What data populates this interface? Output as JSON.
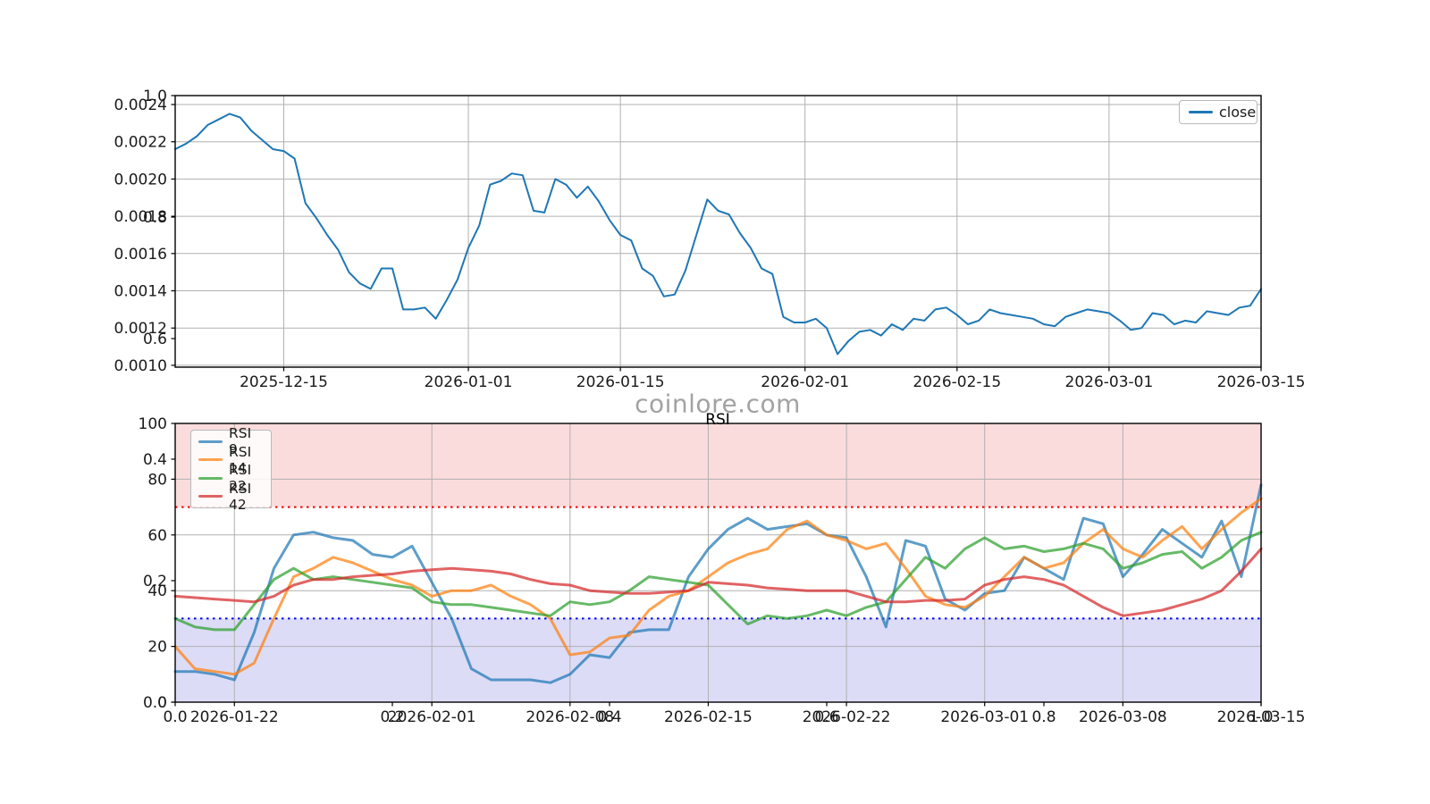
{
  "watermark": "coinlore.com",
  "colors": {
    "close_line": "#1f77b4",
    "rsi9": "#1f77b4",
    "rsi14": "#ff7f0e",
    "rsi22": "#2ca02c",
    "rsi42": "#d62728",
    "overbought_band": "#fbdcdd",
    "oversold_band": "#dcdcf7",
    "overbought_line": "#f50000",
    "oversold_line": "#0000f0",
    "grid": "#b0b0b0",
    "tick_text": "#1a1a1a"
  },
  "hidden_axis": {
    "x_labels": [
      "0.0",
      "0.2",
      "0.4",
      "0.6",
      "0.8",
      "1.0"
    ],
    "y_labels": [
      "1.0",
      "0.8",
      "0.6",
      "0.4",
      "0.2",
      "0.0"
    ]
  },
  "chart_data": [
    {
      "type": "line",
      "name": "price-panel",
      "title": "",
      "xlabel": "",
      "ylabel": "",
      "start_date": "2025-12-05",
      "frequency": "daily",
      "grid": true,
      "legend_position": "upper right",
      "ylim": [
        0.00099,
        0.002448
      ],
      "x_tick_labels": [
        "2025-12-15",
        "2026-01-01",
        "2026-01-15",
        "2026-02-01",
        "2026-02-15",
        "2026-03-01",
        "2026-03-15"
      ],
      "x_tick_indices": [
        10,
        27,
        41,
        58,
        72,
        86,
        100
      ],
      "y_tick_labels": [
        "0.0010",
        "0.0012",
        "0.0014",
        "0.0016",
        "0.0018",
        "0.0020",
        "0.0022",
        "0.0024"
      ],
      "y_tick_values": [
        0.001,
        0.0012,
        0.0014,
        0.0016,
        0.0018,
        0.002,
        0.0022,
        0.0024
      ],
      "series": [
        {
          "name": "close",
          "color": "#1f77b4",
          "values": [
            0.00216,
            0.00219,
            0.00223,
            0.00229,
            0.00232,
            0.00235,
            0.00233,
            0.00226,
            0.00221,
            0.00216,
            0.00215,
            0.00211,
            0.00187,
            0.00179,
            0.0017,
            0.00162,
            0.0015,
            0.00144,
            0.00141,
            0.00152,
            0.00152,
            0.0013,
            0.0013,
            0.00131,
            0.00125,
            0.00135,
            0.00146,
            0.00163,
            0.00175,
            0.00197,
            0.00199,
            0.00203,
            0.00202,
            0.00183,
            0.00182,
            0.002,
            0.00197,
            0.0019,
            0.00196,
            0.00188,
            0.00178,
            0.0017,
            0.00167,
            0.00152,
            0.00148,
            0.00137,
            0.00138,
            0.00151,
            0.0017,
            0.00189,
            0.00183,
            0.00181,
            0.00171,
            0.00163,
            0.00152,
            0.00149,
            0.00126,
            0.00123,
            0.00123,
            0.00125,
            0.0012,
            0.00106,
            0.00113,
            0.00118,
            0.00119,
            0.00116,
            0.00122,
            0.00119,
            0.00125,
            0.00124,
            0.0013,
            0.00131,
            0.00127,
            0.00122,
            0.00124,
            0.0013,
            0.00128,
            0.00127,
            0.00126,
            0.00125,
            0.00122,
            0.00121,
            0.00126,
            0.00128,
            0.0013,
            0.00129,
            0.00128,
            0.00124,
            0.00119,
            0.0012,
            0.00128,
            0.00127,
            0.00122,
            0.00124,
            0.00123,
            0.00129,
            0.00128,
            0.00127,
            0.00131,
            0.00132,
            0.00141
          ]
        }
      ]
    },
    {
      "type": "line",
      "name": "rsi-panel",
      "title": "RSI",
      "xlabel": "",
      "ylabel": "",
      "start_date": "2026-01-19",
      "frequency": "daily",
      "grid": true,
      "legend_position": "upper left",
      "ylim": [
        0,
        100
      ],
      "x_tick_labels": [
        "2026-01-22",
        "2026-02-01",
        "2026-02-08",
        "2026-02-15",
        "2026-02-22",
        "2026-03-01",
        "2026-03-08",
        "2026-03-15"
      ],
      "x_tick_indices": [
        3,
        13,
        20,
        27,
        34,
        41,
        48,
        55
      ],
      "y_tick_labels": [
        "0",
        "20",
        "40",
        "60",
        "80",
        "100"
      ],
      "y_tick_values": [
        0,
        20,
        40,
        60,
        80,
        100
      ],
      "bands": [
        {
          "name": "overbought",
          "from": 70,
          "to": 100,
          "color": "#fbdcdd"
        },
        {
          "name": "oversold",
          "from": 0,
          "to": 30,
          "color": "#dcdcf7"
        }
      ],
      "ref_lines": [
        {
          "name": "overbought-threshold",
          "value": 70,
          "color": "#f50000",
          "style": "dotted"
        },
        {
          "name": "oversold-threshold",
          "value": 30,
          "color": "#0000f0",
          "style": "dotted"
        }
      ],
      "series": [
        {
          "name": "RSI 9",
          "color": "#1f77b4",
          "values": [
            11,
            11,
            10,
            8,
            25,
            48,
            60,
            61,
            59,
            58,
            53,
            52,
            56,
            43,
            30,
            12,
            8,
            8,
            8,
            7,
            10,
            17,
            16,
            25,
            26,
            26,
            45,
            55,
            62,
            66,
            62,
            63,
            64,
            60,
            59,
            45,
            27,
            58,
            56,
            37,
            33,
            39,
            40,
            52,
            48,
            44,
            66,
            64,
            45,
            53,
            62,
            57,
            52,
            65,
            45,
            78
          ]
        },
        {
          "name": "RSI 14",
          "color": "#ff7f0e",
          "values": [
            20,
            12,
            11,
            10,
            14,
            30,
            45,
            48,
            52,
            50,
            47,
            44,
            42,
            38,
            40,
            40,
            42,
            38,
            35,
            30,
            17,
            18,
            23,
            24,
            33,
            38,
            40,
            45,
            50,
            53,
            55,
            62,
            65,
            60,
            58,
            55,
            57,
            48,
            38,
            35,
            34,
            38,
            45,
            52,
            48,
            50,
            57,
            62,
            55,
            52,
            58,
            63,
            55,
            62,
            68,
            73
          ]
        },
        {
          "name": "RSI 22",
          "color": "#2ca02c",
          "values": [
            30,
            27,
            26,
            26,
            35,
            44,
            48,
            44,
            45,
            44,
            43,
            42,
            41,
            36,
            35,
            35,
            34,
            33,
            32,
            31,
            36,
            35,
            36,
            40,
            45,
            44,
            43,
            42,
            35,
            28,
            31,
            30,
            31,
            33,
            31,
            34,
            36,
            44,
            52,
            48,
            55,
            59,
            55,
            56,
            54,
            55,
            57,
            55,
            48,
            50,
            53,
            54,
            48,
            52,
            58,
            61
          ]
        },
        {
          "name": "RSI 42",
          "color": "#d62728",
          "values": [
            38,
            37.5,
            37,
            36.5,
            36,
            38,
            42,
            44,
            44,
            45,
            45.5,
            46,
            47,
            47.5,
            48,
            47.5,
            47,
            46,
            44,
            42.5,
            42,
            40,
            39.5,
            39,
            39,
            39.5,
            40,
            43,
            42.5,
            42,
            41,
            40.5,
            40,
            40,
            40,
            38,
            36,
            36,
            36.5,
            36.5,
            37,
            42,
            44,
            45,
            44,
            42,
            38,
            34,
            31,
            32,
            33,
            35,
            37,
            40,
            47,
            55
          ]
        }
      ]
    }
  ]
}
